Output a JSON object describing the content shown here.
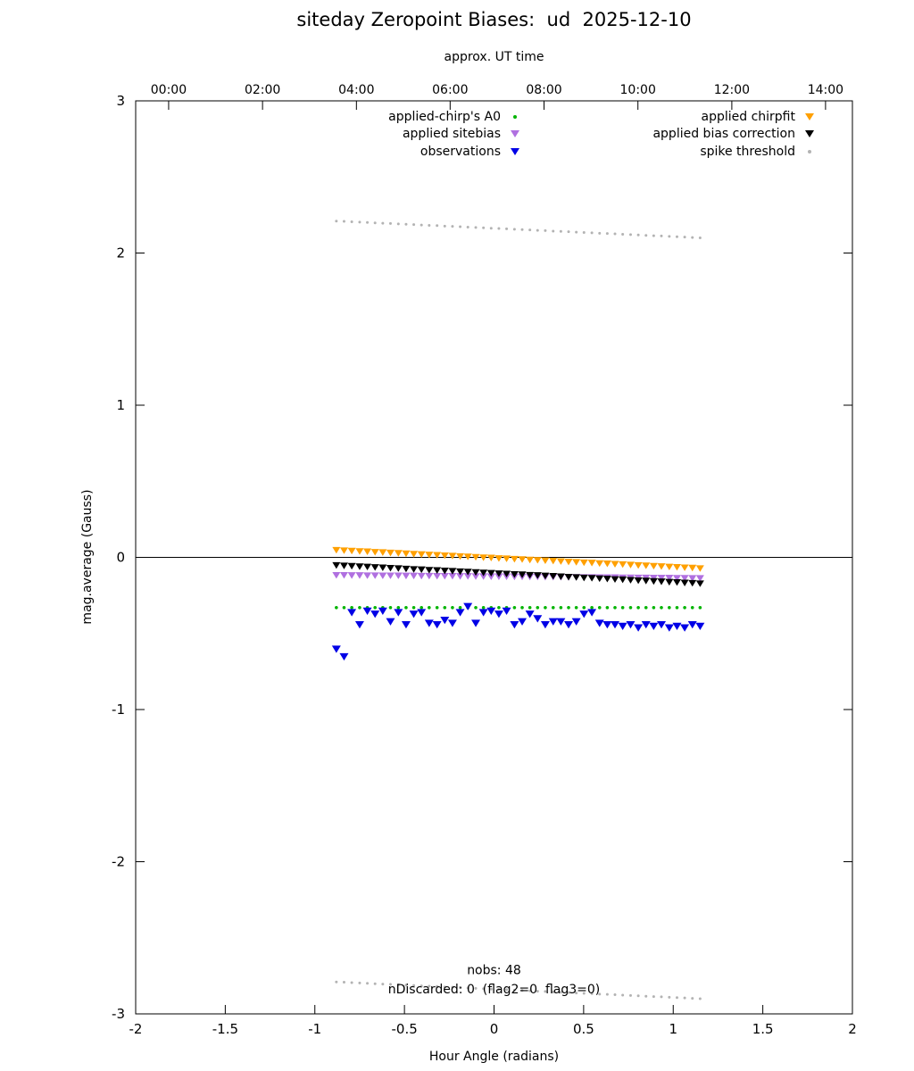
{
  "title": "siteday Zeropoint Biases:  ud  2025-12-10",
  "chart_data": {
    "type": "scatter",
    "title": "siteday Zeropoint Biases:  ud  2025-12-10",
    "xlabel": "Hour Angle (radians)",
    "ylabel": "mag.average (Gauss)",
    "top_axis": {
      "label": "approx. UT time",
      "tick_labels": [
        "00:00",
        "02:00",
        "04:00",
        "06:00",
        "08:00",
        "10:00",
        "12:00",
        "14:00"
      ],
      "tick_positions": [
        -1.816,
        -1.292,
        -0.768,
        -0.245,
        0.279,
        0.803,
        1.327,
        1.85
      ]
    },
    "xlim": [
      -2,
      2
    ],
    "ylim": [
      -3,
      3
    ],
    "x_ticks": [
      -2,
      -1.5,
      -1,
      -0.5,
      0,
      0.5,
      1,
      1.5,
      2
    ],
    "y_ticks": [
      -3,
      -2,
      -1,
      0,
      1,
      2,
      3
    ],
    "zero_line": true,
    "grid": false,
    "x": [
      -0.88,
      -0.837,
      -0.794,
      -0.75,
      -0.707,
      -0.664,
      -0.621,
      -0.578,
      -0.534,
      -0.491,
      -0.448,
      -0.405,
      -0.362,
      -0.318,
      -0.275,
      -0.232,
      -0.189,
      -0.146,
      -0.102,
      -0.059,
      -0.016,
      0.027,
      0.07,
      0.114,
      0.157,
      0.2,
      0.243,
      0.286,
      0.33,
      0.373,
      0.416,
      0.459,
      0.502,
      0.546,
      0.589,
      0.632,
      0.675,
      0.718,
      0.762,
      0.805,
      0.848,
      0.891,
      0.934,
      0.978,
      1.021,
      1.064,
      1.107,
      1.15
    ],
    "series": [
      {
        "name": "spike threshold (upper)",
        "marker": "dot",
        "size": 1.5,
        "color": "#b3b3b3",
        "in_legend": false,
        "values": [
          2.21,
          2.208,
          2.205,
          2.203,
          2.201,
          2.198,
          2.196,
          2.194,
          2.191,
          2.189,
          2.187,
          2.184,
          2.182,
          2.18,
          2.177,
          2.175,
          2.173,
          2.17,
          2.168,
          2.166,
          2.163,
          2.161,
          2.159,
          2.156,
          2.154,
          2.152,
          2.149,
          2.147,
          2.144,
          2.142,
          2.14,
          2.137,
          2.135,
          2.133,
          2.13,
          2.128,
          2.126,
          2.123,
          2.121,
          2.119,
          2.116,
          2.114,
          2.112,
          2.109,
          2.107,
          2.105,
          2.102,
          2.1
        ]
      },
      {
        "name": "spike threshold (lower)",
        "marker": "dot",
        "size": 1.5,
        "color": "#b3b3b3",
        "in_legend": false,
        "values": [
          -2.79,
          -2.792,
          -2.795,
          -2.797,
          -2.799,
          -2.802,
          -2.804,
          -2.806,
          -2.809,
          -2.811,
          -2.813,
          -2.816,
          -2.818,
          -2.82,
          -2.823,
          -2.825,
          -2.827,
          -2.83,
          -2.832,
          -2.834,
          -2.837,
          -2.839,
          -2.841,
          -2.844,
          -2.846,
          -2.848,
          -2.851,
          -2.853,
          -2.856,
          -2.858,
          -2.86,
          -2.863,
          -2.865,
          -2.867,
          -2.87,
          -2.872,
          -2.874,
          -2.877,
          -2.879,
          -2.881,
          -2.884,
          -2.886,
          -2.888,
          -2.891,
          -2.893,
          -2.895,
          -2.898,
          -2.9
        ]
      },
      {
        "name": "applied chirpfit",
        "marker": "triangle-down",
        "size": 4.5,
        "color": "#ffa000",
        "in_legend": true,
        "values": [
          0.05,
          0.047,
          0.045,
          0.042,
          0.04,
          0.037,
          0.035,
          0.032,
          0.03,
          0.027,
          0.024,
          0.022,
          0.019,
          0.017,
          0.014,
          0.012,
          0.009,
          0.007,
          0.004,
          0.001,
          -0.001,
          -0.004,
          -0.006,
          -0.009,
          -0.011,
          -0.014,
          -0.016,
          -0.019,
          -0.021,
          -0.024,
          -0.027,
          -0.029,
          -0.032,
          -0.034,
          -0.037,
          -0.039,
          -0.042,
          -0.044,
          -0.047,
          -0.05,
          -0.052,
          -0.055,
          -0.057,
          -0.06,
          -0.062,
          -0.065,
          -0.067,
          -0.07
        ]
      },
      {
        "name": "applied sitebias",
        "marker": "triangle-down",
        "size": 4.5,
        "color": "#b070e0",
        "in_legend": true,
        "values": [
          -0.115,
          -0.115,
          -0.116,
          -0.116,
          -0.117,
          -0.117,
          -0.118,
          -0.118,
          -0.118,
          -0.119,
          -0.119,
          -0.12,
          -0.12,
          -0.121,
          -0.121,
          -0.121,
          -0.122,
          -0.122,
          -0.123,
          -0.123,
          -0.124,
          -0.124,
          -0.124,
          -0.125,
          -0.125,
          -0.126,
          -0.126,
          -0.127,
          -0.127,
          -0.127,
          -0.128,
          -0.128,
          -0.129,
          -0.129,
          -0.13,
          -0.13,
          -0.13,
          -0.131,
          -0.131,
          -0.132,
          -0.132,
          -0.133,
          -0.133,
          -0.133,
          -0.134,
          -0.134,
          -0.135,
          -0.135
        ]
      },
      {
        "name": "applied bias correction",
        "marker": "triangle-down",
        "size": 4.5,
        "color": "#000000",
        "in_legend": true,
        "values": [
          -0.05,
          -0.053,
          -0.055,
          -0.058,
          -0.06,
          -0.063,
          -0.065,
          -0.068,
          -0.07,
          -0.073,
          -0.076,
          -0.078,
          -0.081,
          -0.083,
          -0.086,
          -0.088,
          -0.091,
          -0.093,
          -0.096,
          -0.099,
          -0.101,
          -0.104,
          -0.106,
          -0.109,
          -0.111,
          -0.114,
          -0.116,
          -0.119,
          -0.121,
          -0.124,
          -0.127,
          -0.129,
          -0.132,
          -0.134,
          -0.137,
          -0.139,
          -0.142,
          -0.144,
          -0.147,
          -0.15,
          -0.152,
          -0.155,
          -0.157,
          -0.16,
          -0.162,
          -0.165,
          -0.167,
          -0.17
        ]
      },
      {
        "name": "applied-chirp's A0",
        "marker": "dot",
        "size": 1.8,
        "color": "#00b400",
        "in_legend": true,
        "values": [
          -0.33,
          -0.33,
          -0.33,
          -0.33,
          -0.33,
          -0.33,
          -0.33,
          -0.33,
          -0.33,
          -0.33,
          -0.33,
          -0.33,
          -0.33,
          -0.33,
          -0.33,
          -0.33,
          -0.33,
          -0.33,
          -0.33,
          -0.33,
          -0.33,
          -0.33,
          -0.33,
          -0.33,
          -0.33,
          -0.33,
          -0.33,
          -0.33,
          -0.33,
          -0.33,
          -0.33,
          -0.33,
          -0.33,
          -0.33,
          -0.33,
          -0.33,
          -0.33,
          -0.33,
          -0.33,
          -0.33,
          -0.33,
          -0.33,
          -0.33,
          -0.33,
          -0.33,
          -0.33,
          -0.33,
          -0.33
        ]
      },
      {
        "name": "observations",
        "marker": "triangle-down",
        "size": 5,
        "color": "#0000e6",
        "in_legend": true,
        "values": [
          -0.6,
          -0.65,
          -0.36,
          -0.44,
          -0.35,
          -0.37,
          -0.35,
          -0.42,
          -0.36,
          -0.44,
          -0.37,
          -0.36,
          -0.43,
          -0.44,
          -0.41,
          -0.43,
          -0.36,
          -0.32,
          -0.43,
          -0.36,
          -0.35,
          -0.37,
          -0.35,
          -0.44,
          -0.42,
          -0.37,
          -0.4,
          -0.44,
          -0.42,
          -0.42,
          -0.44,
          -0.42,
          -0.37,
          -0.36,
          -0.43,
          -0.44,
          -0.44,
          -0.45,
          -0.44,
          -0.46,
          -0.44,
          -0.45,
          -0.44,
          -0.46,
          -0.45,
          -0.46,
          -0.44,
          -0.45
        ]
      }
    ],
    "legend": {
      "position": "top-inside",
      "columns": [
        {
          "entries": [
            {
              "label": "applied-chirp's A0",
              "marker": "dot",
              "color": "#00b400"
            },
            {
              "label": "applied sitebias",
              "marker": "triangle-down",
              "color": "#b070e0"
            },
            {
              "label": "observations",
              "marker": "triangle-down",
              "color": "#0000e6"
            }
          ]
        },
        {
          "entries": [
            {
              "label": "applied chirpfit",
              "marker": "triangle-down",
              "color": "#ffa000"
            },
            {
              "label": "applied bias correction",
              "marker": "triangle-down",
              "color": "#000000"
            },
            {
              "label": "spike threshold",
              "marker": "dot",
              "color": "#b3b3b3"
            }
          ]
        }
      ]
    },
    "annotations": [
      {
        "text": "nobs: 48",
        "x": 0,
        "y": -2.71
      },
      {
        "text": "nDiscarded: 0  (flag2=0  flag3=0)",
        "x": 0,
        "y": -2.835
      }
    ]
  }
}
